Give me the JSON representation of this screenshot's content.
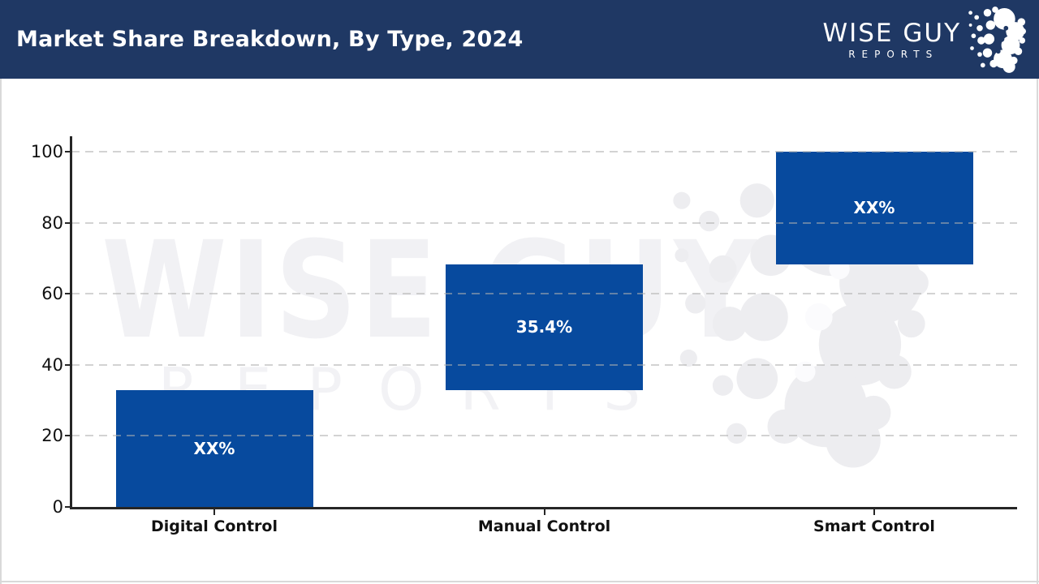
{
  "header": {
    "title": "Market Share Breakdown, By Type, 2024",
    "logo": {
      "line1": "WISE GUY",
      "line2": "REPORTS"
    }
  },
  "watermark": {
    "line1": "WISE GUY",
    "line2": "REPORTS"
  },
  "chart_data": {
    "type": "bar",
    "subtype": "floating-waterfall",
    "title": "Market Share Breakdown, By Type, 2024",
    "categories": [
      "Digital Control",
      "Manual Control",
      "Smart Control"
    ],
    "series": [
      {
        "name": "Market share by type (%)",
        "segments": [
          {
            "category": "Digital Control",
            "start": 0,
            "end": 32.9,
            "label": "XX%"
          },
          {
            "category": "Manual Control",
            "start": 32.9,
            "end": 68.3,
            "label": "35.4%"
          },
          {
            "category": "Smart Control",
            "start": 68.3,
            "end": 100,
            "label": "XX%"
          }
        ]
      }
    ],
    "xlabel": "",
    "ylabel": "",
    "ylim": [
      0,
      104
    ],
    "yticks": [
      0,
      20,
      40,
      60,
      80,
      100
    ],
    "grid": {
      "horizontal": true,
      "style": "dashed",
      "drawn_over_bars": true
    },
    "legend": "none",
    "bar_color": "#074a9e",
    "bar_label_color": "#ffffff",
    "header_color": "#1f3864"
  }
}
